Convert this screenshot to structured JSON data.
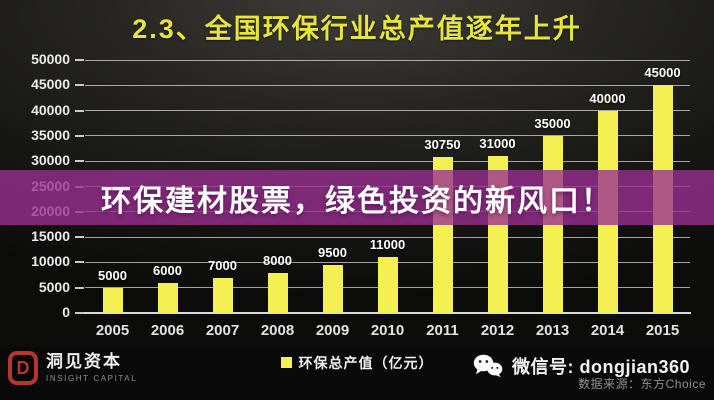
{
  "header": {
    "title": "2.3、全国环保行业总产值逐年上升"
  },
  "overlay": {
    "text": "环保建材股票，绿色投资的新风口！",
    "bg_color": "#9b2f92"
  },
  "chart_data": {
    "type": "bar",
    "title": "全国环保行业总产值逐年上升",
    "categories": [
      "2005",
      "2006",
      "2007",
      "2008",
      "2009",
      "2010",
      "2011",
      "2012",
      "2013",
      "2014",
      "2015"
    ],
    "values": [
      5000,
      6000,
      7000,
      8000,
      9500,
      11000,
      30750,
      31000,
      35000,
      40000,
      45000
    ],
    "xlabel": "",
    "ylabel": "",
    "ylim": [
      0,
      50000
    ],
    "ytick_step": 5000,
    "grid": true,
    "legend": "环保总产值（亿元）",
    "legend_position": "bottom",
    "bar_color": "#f4ef52"
  },
  "footer": {
    "logo_letter": "D",
    "logo_name": "洞见资本",
    "logo_subtitle": "INSIGHT CAPITAL",
    "wechat_label": "微信号: dongjian360",
    "source": "数据来源：东方Choice"
  }
}
